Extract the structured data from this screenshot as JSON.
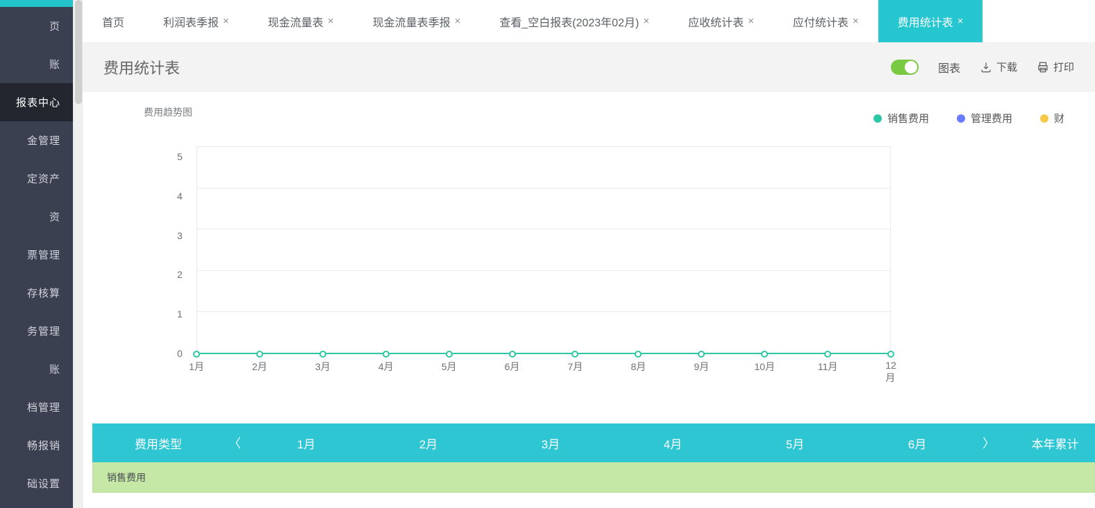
{
  "sidebar": {
    "items": [
      {
        "label": "页"
      },
      {
        "label": "账"
      },
      {
        "label": "报表中心"
      },
      {
        "label": "金管理"
      },
      {
        "label": "定资产"
      },
      {
        "label": "资"
      },
      {
        "label": "票管理"
      },
      {
        "label": "存核算"
      },
      {
        "label": "务管理"
      },
      {
        "label": "账"
      },
      {
        "label": "档管理"
      },
      {
        "label": "畅报销"
      },
      {
        "label": "础设置"
      }
    ],
    "active_index": 2
  },
  "tabs": [
    {
      "label": "首页",
      "closable": false
    },
    {
      "label": "利润表季报",
      "closable": true
    },
    {
      "label": "现金流量表",
      "closable": true
    },
    {
      "label": "现金流量表季报",
      "closable": true
    },
    {
      "label": "查看_空白报表(2023年02月)",
      "closable": true
    },
    {
      "label": "应收统计表",
      "closable": true
    },
    {
      "label": "应付统计表",
      "closable": true
    },
    {
      "label": "费用统计表",
      "closable": true
    }
  ],
  "tabs_active_index": 7,
  "page": {
    "title": "费用统计表",
    "toggle_label": "图表",
    "download_label": "下载",
    "print_label": "打印"
  },
  "chart": {
    "title": "费用趋势图",
    "type": "line",
    "x_labels": [
      "1月",
      "2月",
      "3月",
      "4月",
      "5月",
      "6月",
      "7月",
      "8月",
      "9月",
      "10月",
      "11月",
      "12月"
    ],
    "y_ticks": [
      0,
      1,
      2,
      3,
      4,
      5
    ],
    "ylim": [
      0,
      5
    ],
    "series": [
      {
        "name": "销售费用",
        "color": "#2ec7a6",
        "values": [
          0,
          0,
          0,
          0,
          0,
          0,
          0,
          0,
          0,
          0,
          0,
          0
        ],
        "marker": "circle"
      },
      {
        "name": "管理费用",
        "color": "#6c7cff",
        "values": [
          0,
          0,
          0,
          0,
          0,
          0,
          0,
          0,
          0,
          0,
          0,
          0
        ],
        "marker": "circle"
      },
      {
        "name": "财",
        "color": "#f7c948",
        "values": [
          0,
          0,
          0,
          0,
          0,
          0,
          0,
          0,
          0,
          0,
          0,
          0
        ],
        "marker": "circle"
      }
    ],
    "grid_color": "#eaeaea",
    "background_color": "#ffffff",
    "axis_label_color": "#6d7075",
    "axis_fontsize": 14
  },
  "table": {
    "type_header": "费用类型",
    "month_headers": [
      "1月",
      "2月",
      "3月",
      "4月",
      "5月",
      "6月"
    ],
    "total_header": "本年累计",
    "rows": [
      {
        "type": "销售费用",
        "values": [
          "",
          "",
          "",
          "",
          "",
          ""
        ],
        "total": ""
      }
    ],
    "header_bg": "#2ec6d3",
    "row_bg": "#c5e8a7"
  }
}
